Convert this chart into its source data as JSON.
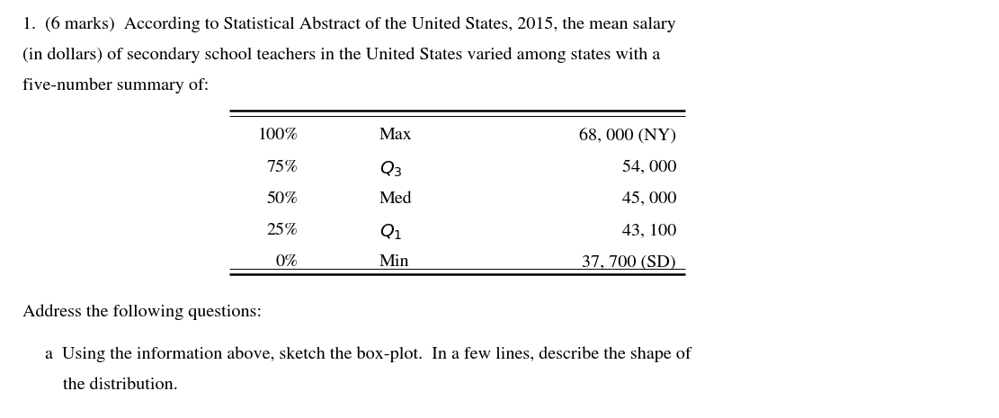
{
  "bg_color": "#ffffff",
  "text_color": "#000000",
  "title_line1": "1.  (6 marks)  According to Statistical Abstract of the United States, 2015, the mean salary",
  "title_line2": "(in dollars) of secondary school teachers in the United States varied among states with a",
  "title_line3": "five-number summary of:",
  "table_col1": [
    "100%",
    "75%",
    "50%",
    "25%",
    "0%"
  ],
  "table_col2_text": [
    "Max",
    "",
    "Med",
    "",
    "Min"
  ],
  "table_col2_math": [
    "",
    "$Q_3$",
    "",
    "$Q_1$",
    ""
  ],
  "table_col3": [
    "68, 000 (NY)",
    "54, 000",
    "45, 000",
    "43, 100",
    "37, 700 (SD)"
  ],
  "footer_line1": "Address the following questions:",
  "footer_line2": "a  Using the information above, sketch the box-plot.  In a few lines, describe the shape of",
  "footer_line3": "    the distribution.",
  "font_size_body": 14.5,
  "font_size_table": 14.5,
  "font_family": "STIXGeneral"
}
